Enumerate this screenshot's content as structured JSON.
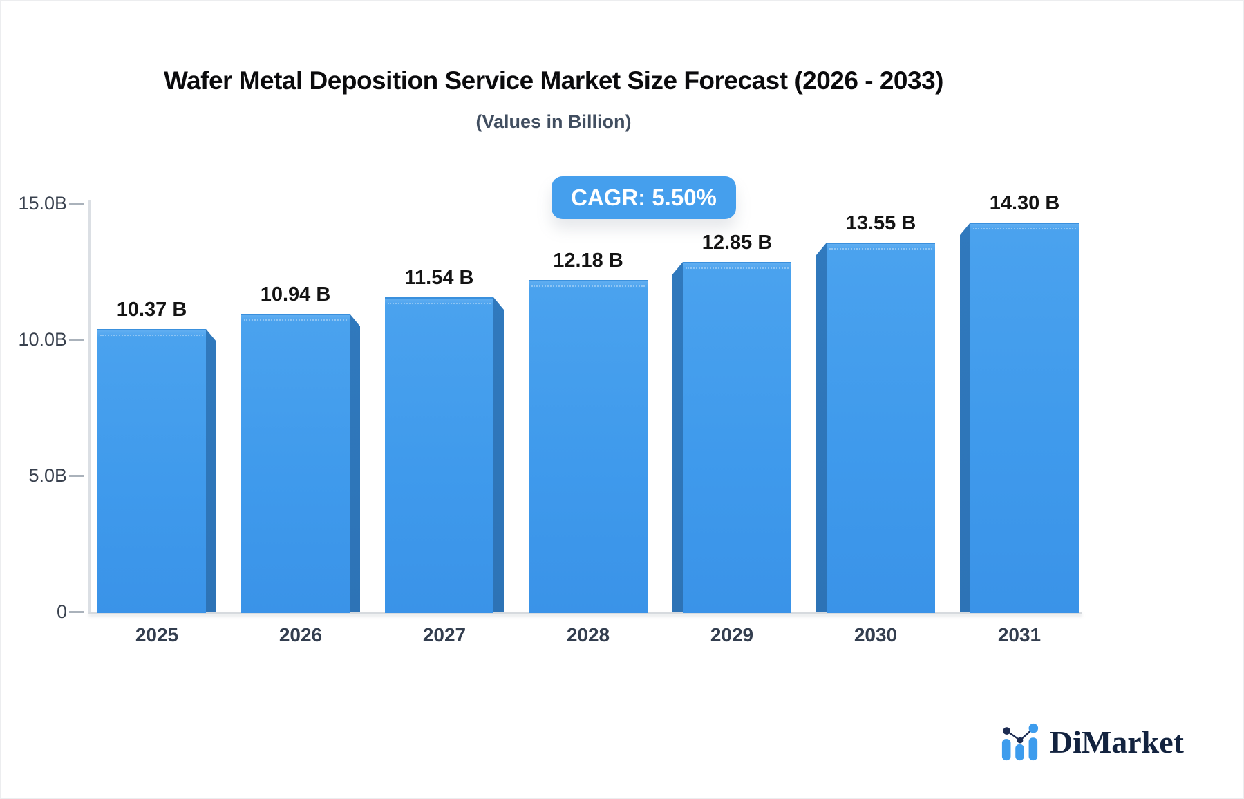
{
  "header": {
    "title": "Wafer Metal Deposition Service Market Size Forecast (2026 - 2033)",
    "subtitle": "(Values in Billion)"
  },
  "badge": {
    "label": "CAGR: 5.50%",
    "bg_color": "#459FED",
    "text_color": "#FFFFFF"
  },
  "chart_data": {
    "type": "bar",
    "title": "Wafer Metal Deposition Service Market Size Forecast (2026 - 2033)",
    "subtitle": "(Values in Billion)",
    "categories": [
      "2025",
      "2026",
      "2027",
      "2028",
      "2029",
      "2030",
      "2031"
    ],
    "values": [
      10.37,
      10.94,
      11.54,
      12.18,
      12.85,
      13.55,
      14.3
    ],
    "value_labels": [
      "10.37 B",
      "10.94 B",
      "11.54 B",
      "12.18 B",
      "12.85 B",
      "13.55 B",
      "14.30 B"
    ],
    "side_3d": [
      "right",
      "right",
      "right",
      "none",
      "left",
      "left",
      "left"
    ],
    "xlabel": "",
    "ylabel": "",
    "ylim": [
      0,
      15
    ],
    "yticks": [
      {
        "label": "15.0B",
        "value": 15
      },
      {
        "label": "10.0B",
        "value": 10
      },
      {
        "label": "5.0B",
        "value": 5
      },
      {
        "label": "0",
        "value": 0
      }
    ],
    "grid": false,
    "legend": false,
    "bar_color": "#3F9AEC",
    "bar_side_color": "#2D73B6",
    "axis_color": "#D9DDE2"
  },
  "logo": {
    "text": "DiMarket",
    "text_color": "#13233F",
    "icon_bar_color": "#3D9CED",
    "icon_dot_color": "#1D2C52"
  }
}
